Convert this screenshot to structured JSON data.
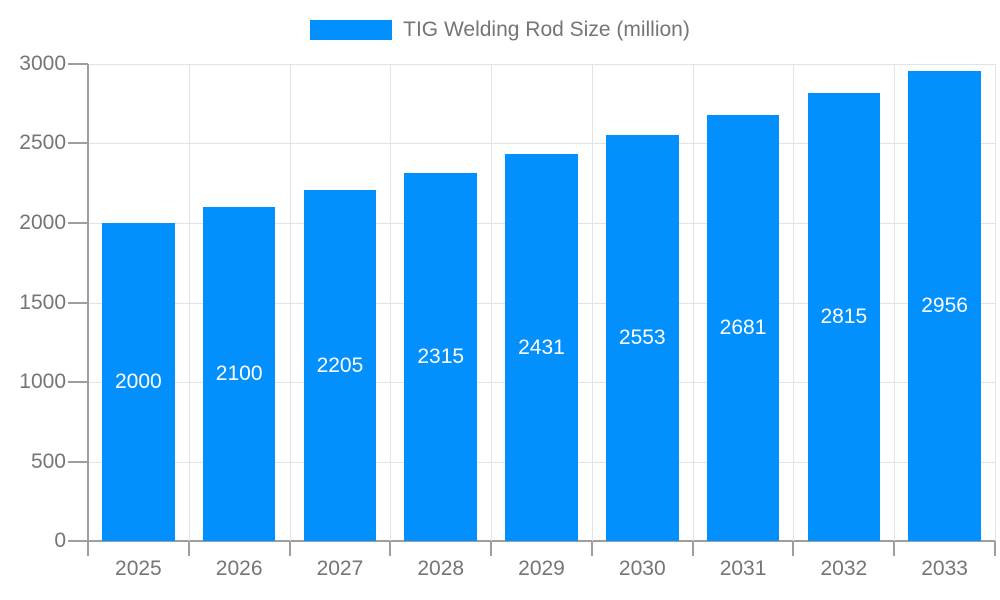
{
  "chart_data": {
    "type": "bar",
    "title": "TIG Welding Rod Size (million)",
    "legend": [
      "TIG Welding Rod Size (million)"
    ],
    "legend_position": "top",
    "categories": [
      "2025",
      "2026",
      "2027",
      "2028",
      "2029",
      "2030",
      "2031",
      "2032",
      "2033"
    ],
    "values": [
      2000,
      2100,
      2205,
      2315,
      2431,
      2553,
      2681,
      2815,
      2956
    ],
    "xlabel": "",
    "ylabel": "",
    "ylim": [
      0,
      3000
    ],
    "yticks": [
      0,
      500,
      1000,
      1500,
      2000,
      2500,
      3000
    ],
    "grid": true,
    "bar_color": "#0190fe",
    "bar_label_color": "#ffffff",
    "tick_text_color": "#757575",
    "grid_color": "#e3e3e3",
    "axis_color": "#9e9e9e",
    "background_color": "#ffffff"
  }
}
